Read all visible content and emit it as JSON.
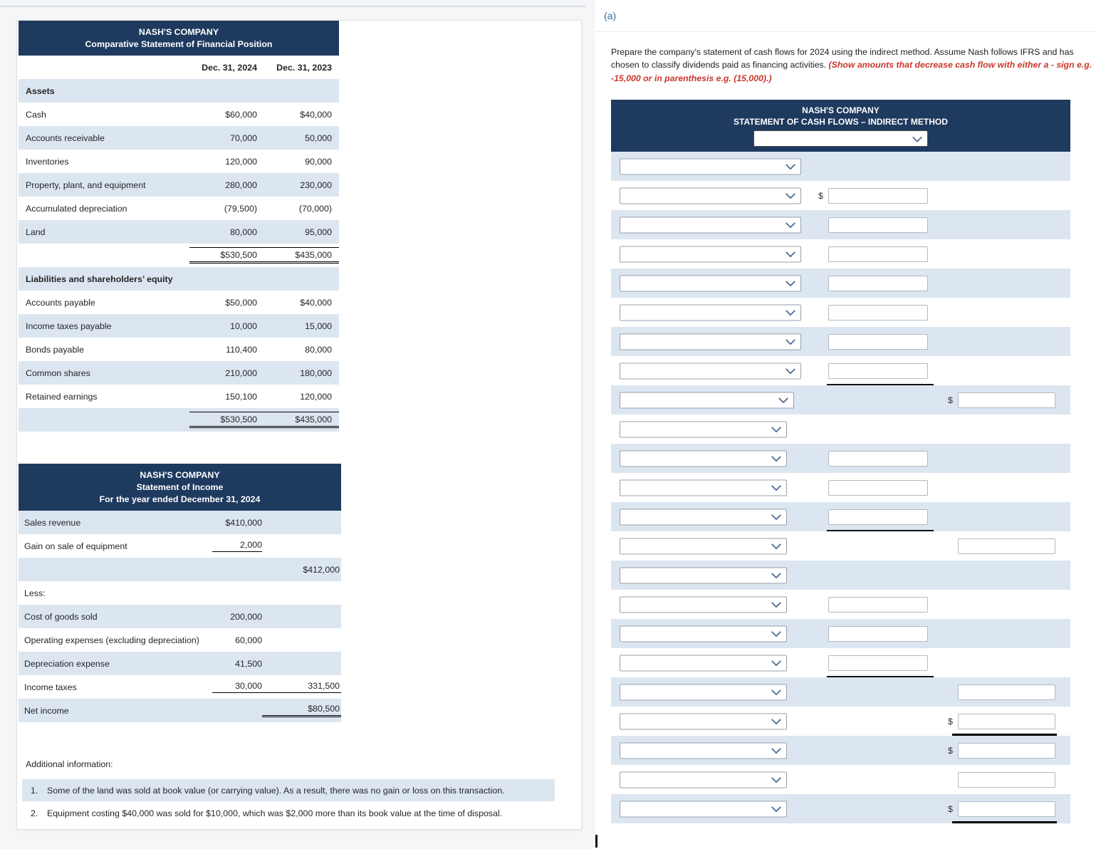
{
  "currency": "$",
  "section_a": {
    "label": "(a)",
    "instructions": "Prepare the company's statement of cash flows for 2024 using the indirect method. Assume Nash follows IFRS and has chosen to classify dividends paid as financing activities. ",
    "instructions_emphasis": "(Show amounts that decrease cash flow with either a - sign e.g. -15,000 or in parenthesis e.g. (15,000).)"
  },
  "cashflow_form": {
    "company": "NASH'S COMPANY",
    "title": "STATEMENT OF CASH FLOWS – INDIRECT METHOD"
  },
  "balance_sheet": {
    "company": "NASH'S COMPANY",
    "title": "Comparative Statement of Financial Position",
    "columns": [
      "Dec. 31, 2024",
      "Dec. 31, 2023"
    ],
    "assets": {
      "header": "Assets",
      "rows": [
        {
          "label": "Cash",
          "y2024": "$60,000",
          "y2023": "$40,000"
        },
        {
          "label": "Accounts receivable",
          "y2024": "70,000",
          "y2023": "50,000"
        },
        {
          "label": "Inventories",
          "y2024": "120,000",
          "y2023": "90,000"
        },
        {
          "label": "Property, plant, and equipment",
          "y2024": "280,000",
          "y2023": "230,000"
        },
        {
          "label": "Accumulated depreciation",
          "y2024": "(79,500)",
          "y2023": "(70,000)"
        },
        {
          "label": "Land",
          "y2024": "80,000",
          "y2023": "95,000"
        }
      ],
      "total": {
        "y2024": "$530,500",
        "y2023": "$435,000"
      }
    },
    "liabilities": {
      "header": "Liabilities and shareholders’ equity",
      "rows": [
        {
          "label": "Accounts payable",
          "y2024": "$50,000",
          "y2023": "$40,000"
        },
        {
          "label": "Income taxes payable",
          "y2024": "10,000",
          "y2023": "15,000"
        },
        {
          "label": "Bonds payable",
          "y2024": "110,400",
          "y2023": "80,000"
        },
        {
          "label": "Common shares",
          "y2024": "210,000",
          "y2023": "180,000"
        },
        {
          "label": "Retained earnings",
          "y2024": "150,100",
          "y2023": "120,000"
        }
      ],
      "total": {
        "y2024": "$530,500",
        "y2023": "$435,000"
      }
    }
  },
  "income_statement": {
    "company": "NASH'S COMPANY",
    "title": "Statement of Income",
    "period": "For the year ended December 31, 2024",
    "rows": [
      {
        "label": "Sales revenue",
        "mid": "$410,000",
        "right": ""
      },
      {
        "label": "Gain on sale of equipment",
        "mid": "2,000",
        "right": ""
      },
      {
        "label": "",
        "mid": "",
        "right": "$412,000"
      },
      {
        "label": "Less:",
        "mid": "",
        "right": ""
      },
      {
        "label": "Cost of goods sold",
        "mid": "200,000",
        "right": ""
      },
      {
        "label": "Operating expenses (excluding depreciation)",
        "mid": "60,000",
        "right": ""
      },
      {
        "label": "Depreciation expense",
        "mid": "41,500",
        "right": ""
      },
      {
        "label": "Income taxes",
        "mid": "30,000",
        "right": "331,500"
      },
      {
        "label": "Net income",
        "mid": "",
        "right": "$80,500"
      }
    ]
  },
  "additional_info": {
    "title": "Additional information:",
    "items": [
      {
        "num": "1.",
        "text": "Some of the land was sold at book value (or carrying value). As a result, there was no gain or loss on this transaction."
      },
      {
        "num": "2.",
        "text": "Equipment costing $40,000 was sold for $10,000, which was $2,000 more than its book value at the time of disposal."
      }
    ]
  }
}
